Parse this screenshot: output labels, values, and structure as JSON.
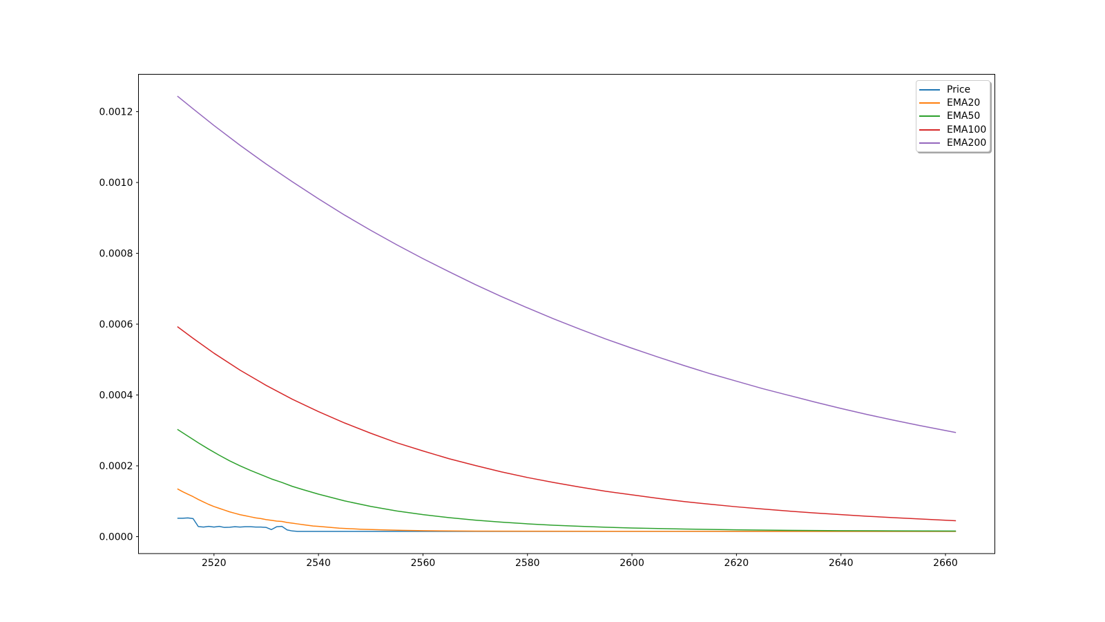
{
  "figure": {
    "background": "#ffffff",
    "axis_color": "#000000"
  },
  "chart_data": {
    "type": "line",
    "title": "",
    "xlabel": "",
    "ylabel": "",
    "grid": false,
    "legend_position": "upper right",
    "xlim": [
      2505.55,
      2669.45
    ],
    "ylim": [
      -4.78e-05,
      0.0013055
    ],
    "x_ticks": [
      2520,
      2540,
      2560,
      2580,
      2600,
      2620,
      2640,
      2660
    ],
    "x_tick_labels": [
      "2520",
      "2540",
      "2560",
      "2580",
      "2600",
      "2620",
      "2640",
      "2660"
    ],
    "y_ticks": [
      0.0,
      0.0002,
      0.0004,
      0.0006,
      0.0008,
      0.001,
      0.0012
    ],
    "y_tick_labels": [
      "0.0000",
      "0.0002",
      "0.0004",
      "0.0006",
      "0.0008",
      "0.0010",
      "0.0012"
    ],
    "series": [
      {
        "name": "Price",
        "color": "#1f77b4",
        "points": [
          [
            2513,
            5.2e-05
          ],
          [
            2514,
            5.2e-05
          ],
          [
            2515,
            5.3e-05
          ],
          [
            2516,
            5.1e-05
          ],
          [
            2517,
            2.85e-05
          ],
          [
            2518,
            2.7e-05
          ],
          [
            2519,
            2.9e-05
          ],
          [
            2520,
            2.7e-05
          ],
          [
            2521,
            2.9e-05
          ],
          [
            2522,
            2.6e-05
          ],
          [
            2523,
            2.65e-05
          ],
          [
            2524,
            2.8e-05
          ],
          [
            2525,
            2.7e-05
          ],
          [
            2526,
            2.8e-05
          ],
          [
            2527,
            2.8e-05
          ],
          [
            2528,
            2.7e-05
          ],
          [
            2529,
            2.7e-05
          ],
          [
            2530,
            2.6e-05
          ],
          [
            2531,
            2e-05
          ],
          [
            2532,
            2.8e-05
          ],
          [
            2533,
            2.9e-05
          ],
          [
            2534,
            1.9e-05
          ],
          [
            2535,
            1.6e-05
          ],
          [
            2536,
            1.5e-05
          ],
          [
            2540,
            1.5e-05
          ],
          [
            2550,
            1.5e-05
          ],
          [
            2560,
            1.5e-05
          ],
          [
            2580,
            1.5e-05
          ],
          [
            2600,
            1.5e-05
          ],
          [
            2620,
            1.5e-05
          ],
          [
            2640,
            1.5e-05
          ],
          [
            2662,
            1.5e-05
          ]
        ]
      },
      {
        "name": "EMA20",
        "color": "#ff7f0e",
        "points": [
          [
            2513,
            0.000135
          ],
          [
            2514,
            0.000127
          ],
          [
            2515,
            0.00012
          ],
          [
            2516,
            0.000113
          ],
          [
            2517,
            0.000105
          ],
          [
            2518,
            9.8e-05
          ],
          [
            2519,
            9.1e-05
          ],
          [
            2520,
            8.5e-05
          ],
          [
            2521,
            8e-05
          ],
          [
            2522,
            7.5e-05
          ],
          [
            2523,
            7e-05
          ],
          [
            2524,
            6.6e-05
          ],
          [
            2525,
            6.2e-05
          ],
          [
            2526,
            5.9e-05
          ],
          [
            2527,
            5.6e-05
          ],
          [
            2528,
            5.3e-05
          ],
          [
            2529,
            5.1e-05
          ],
          [
            2530,
            4.8e-05
          ],
          [
            2531,
            4.6e-05
          ],
          [
            2532,
            4.4e-05
          ],
          [
            2533,
            4.3e-05
          ],
          [
            2534,
            4e-05
          ],
          [
            2535,
            3.8e-05
          ],
          [
            2536,
            3.6e-05
          ],
          [
            2537,
            3.4e-05
          ],
          [
            2538,
            3.2e-05
          ],
          [
            2539,
            3e-05
          ],
          [
            2540,
            2.9e-05
          ],
          [
            2544,
            2.4e-05
          ],
          [
            2548,
            2.1e-05
          ],
          [
            2552,
            1.92e-05
          ],
          [
            2556,
            1.78e-05
          ],
          [
            2560,
            1.69e-05
          ],
          [
            2565,
            1.61e-05
          ],
          [
            2570,
            1.57e-05
          ],
          [
            2580,
            1.53e-05
          ],
          [
            2600,
            1.51e-05
          ],
          [
            2630,
            1.5e-05
          ],
          [
            2662,
            1.5e-05
          ]
        ]
      },
      {
        "name": "EMA50",
        "color": "#2ca02c",
        "points": [
          [
            2513,
            0.000303
          ],
          [
            2515,
            0.000284
          ],
          [
            2517,
            0.000265
          ],
          [
            2519,
            0.000247
          ],
          [
            2521,
            0.00023
          ],
          [
            2523,
            0.000214
          ],
          [
            2525,
            0.0002
          ],
          [
            2527,
            0.000187
          ],
          [
            2529,
            0.000175
          ],
          [
            2531,
            0.000163
          ],
          [
            2533,
            0.000153
          ],
          [
            2535,
            0.000142
          ],
          [
            2537,
            0.000133
          ],
          [
            2540,
            0.00012
          ],
          [
            2545,
            0.000101
          ],
          [
            2550,
            8.53e-05
          ],
          [
            2555,
            7.25e-05
          ],
          [
            2560,
            6.21e-05
          ],
          [
            2565,
            5.36e-05
          ],
          [
            2570,
            4.66e-05
          ],
          [
            2575,
            4.09e-05
          ],
          [
            2580,
            3.62e-05
          ],
          [
            2585,
            3.23e-05
          ],
          [
            2590,
            2.92e-05
          ],
          [
            2595,
            2.66e-05
          ],
          [
            2600,
            2.45e-05
          ],
          [
            2610,
            2.14e-05
          ],
          [
            2620,
            1.93e-05
          ],
          [
            2630,
            1.79e-05
          ],
          [
            2640,
            1.69e-05
          ],
          [
            2650,
            1.63e-05
          ],
          [
            2662,
            1.58e-05
          ]
        ]
      },
      {
        "name": "EMA100",
        "color": "#d62728",
        "points": [
          [
            2513,
            0.000593
          ],
          [
            2516,
            0.00056
          ],
          [
            2520,
            0.000518
          ],
          [
            2525,
            0.00047
          ],
          [
            2530,
            0.000427
          ],
          [
            2535,
            0.000388
          ],
          [
            2540,
            0.000353
          ],
          [
            2545,
            0.000321
          ],
          [
            2550,
            0.000292
          ],
          [
            2555,
            0.000265
          ],
          [
            2560,
            0.000242
          ],
          [
            2565,
            0.00022
          ],
          [
            2570,
            0.000201
          ],
          [
            2575,
            0.000183
          ],
          [
            2580,
            0.000167
          ],
          [
            2585,
            0.000153
          ],
          [
            2590,
            0.00014
          ],
          [
            2595,
            0.000128
          ],
          [
            2600,
            0.000118
          ],
          [
            2605,
            0.000108
          ],
          [
            2610,
            9.9e-05
          ],
          [
            2615,
            9.14e-05
          ],
          [
            2620,
            8.43e-05
          ],
          [
            2625,
            7.8e-05
          ],
          [
            2630,
            7.22e-05
          ],
          [
            2635,
            6.69e-05
          ],
          [
            2640,
            6.21e-05
          ],
          [
            2645,
            5.77e-05
          ],
          [
            2650,
            5.37e-05
          ],
          [
            2655,
            5.01e-05
          ],
          [
            2662,
            4.48e-05
          ]
        ]
      },
      {
        "name": "EMA200",
        "color": "#9467bd",
        "points": [
          [
            2513,
            0.001244
          ],
          [
            2516,
            0.001208
          ],
          [
            2520,
            0.001161
          ],
          [
            2525,
            0.001105
          ],
          [
            2530,
            0.001052
          ],
          [
            2535,
            0.001002
          ],
          [
            2540,
            0.000954
          ],
          [
            2545,
            0.000908
          ],
          [
            2550,
            0.000865
          ],
          [
            2555,
            0.000824
          ],
          [
            2560,
            0.000785
          ],
          [
            2565,
            0.000748
          ],
          [
            2570,
            0.000712
          ],
          [
            2575,
            0.000678
          ],
          [
            2580,
            0.000646
          ],
          [
            2585,
            0.000615
          ],
          [
            2590,
            0.000586
          ],
          [
            2595,
            0.000558
          ],
          [
            2600,
            0.000532
          ],
          [
            2605,
            0.000507
          ],
          [
            2610,
            0.000483
          ],
          [
            2615,
            0.00046
          ],
          [
            2620,
            0.000439
          ],
          [
            2625,
            0.000418
          ],
          [
            2630,
            0.000399
          ],
          [
            2635,
            0.00038
          ],
          [
            2640,
            0.000362
          ],
          [
            2645,
            0.000345
          ],
          [
            2650,
            0.000329
          ],
          [
            2655,
            0.000314
          ],
          [
            2662,
            0.000294
          ]
        ]
      }
    ]
  }
}
